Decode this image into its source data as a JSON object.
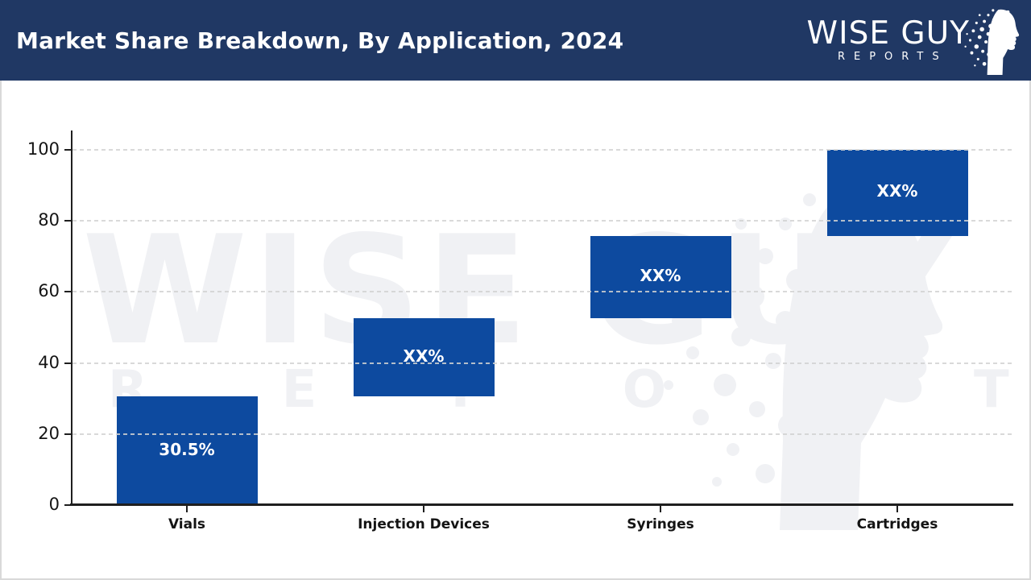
{
  "header": {
    "title": "Market Share Breakdown, By Application, 2024",
    "logo": {
      "line1": "WISE GUY",
      "line2": "REPORTS",
      "icon": "dot-face-profile"
    }
  },
  "watermark": {
    "line1": "WISE GUY",
    "line2": "R E P O R T S"
  },
  "chart_data": {
    "type": "bar",
    "subtype": "waterfall",
    "title": "Market Share Breakdown, By Application, 2024",
    "categories": [
      "Vials",
      "Injection Devices",
      "Syringes",
      "Cartridges"
    ],
    "segments": [
      {
        "category": "Vials",
        "start": 0,
        "end": 30.5,
        "label": "30.5%"
      },
      {
        "category": "Injection Devices",
        "start": 30.5,
        "end": 52.7,
        "label": "XX%"
      },
      {
        "category": "Syringes",
        "start": 52.7,
        "end": 75.8,
        "label": "XX%"
      },
      {
        "category": "Cartridges",
        "start": 75.8,
        "end": 100,
        "label": "XX%"
      }
    ],
    "xlabel": "",
    "ylabel": "",
    "y_ticks": [
      0,
      20,
      40,
      60,
      80,
      100
    ],
    "ylim": [
      0,
      105
    ],
    "grid": {
      "horizontal": true,
      "style": "dashed",
      "drawn_over_bars": true
    },
    "legend": "none",
    "colors": {
      "bar": "#0d4a9f",
      "bar_label": "#ffffff",
      "header_bg": "#203864",
      "axis": "#1f1f1f",
      "gridline": "#d2d2d2",
      "watermark": "#f0f1f4"
    }
  }
}
